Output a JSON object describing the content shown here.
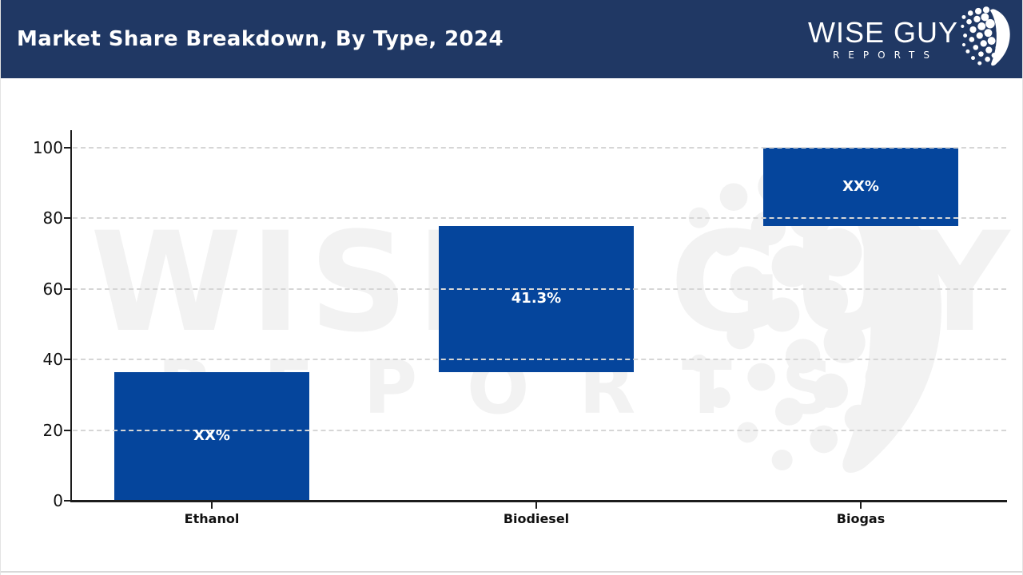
{
  "header": {
    "title": "Market Share Breakdown, By Type, 2024",
    "logo": {
      "line1": "WISE GUY",
      "line2": "REPORTS"
    }
  },
  "watermark": {
    "line1": "WISE GUY",
    "line2": "REPORTS"
  },
  "colors": {
    "header_bg": "#203864",
    "bar": "#05459c",
    "bar_label_text": "#ffffff",
    "axis": "#1c1c1c",
    "gridline": "#d6d6d6",
    "watermark": "#f2f2f2"
  },
  "chart_data": {
    "type": "bar",
    "subtype": "waterfall",
    "title": "Market Share Breakdown, By Type, 2024",
    "categories": [
      "Ethanol",
      "Biodiesel",
      "Biogas"
    ],
    "segments": [
      {
        "category": "Ethanol",
        "start": 0,
        "end": 36.5,
        "label": "XX%"
      },
      {
        "category": "Biodiesel",
        "start": 36.5,
        "end": 77.8,
        "label": "41.3%"
      },
      {
        "category": "Biogas",
        "start": 77.8,
        "end": 100,
        "label": "XX%"
      }
    ],
    "ylim": [
      0,
      100
    ],
    "yticks": [
      0,
      20,
      40,
      60,
      80,
      100
    ],
    "grid": "horizontal dashed",
    "legend": "none"
  }
}
